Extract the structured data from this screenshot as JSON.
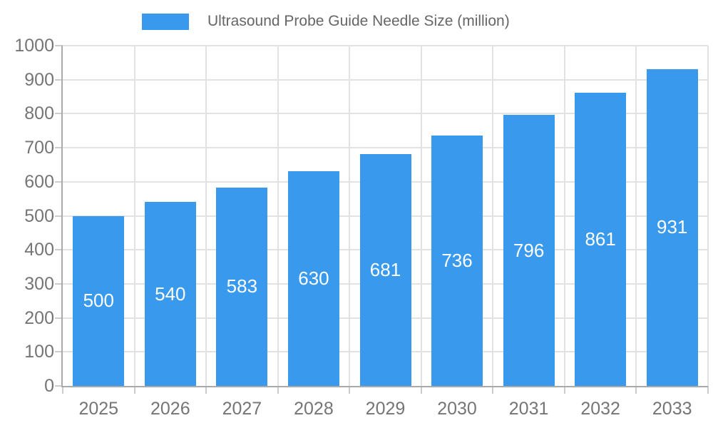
{
  "legend": {
    "label": "Ultrasound Probe Guide Needle Size (million)"
  },
  "colors": {
    "bar": "#3999ec",
    "axis_label": "#757575",
    "legend_text": "#666666",
    "axis_line": "#aaaaaa",
    "grid_line": "#e2e2e2",
    "tick_line": "#cccccc",
    "value_label": "#ffffff"
  },
  "chart_data": {
    "type": "bar",
    "title": "Ultrasound Probe Guide Needle Size (million)",
    "categories": [
      "2025",
      "2026",
      "2027",
      "2028",
      "2029",
      "2030",
      "2031",
      "2032",
      "2033"
    ],
    "series": [
      {
        "name": "Ultrasound Probe Guide Needle Size (million)",
        "values": [
          500,
          540,
          583,
          630,
          681,
          736,
          796,
          861,
          931
        ]
      }
    ],
    "xlabel": "",
    "ylabel": "",
    "ylim": [
      0,
      1000
    ],
    "yticks": [
      0,
      100,
      200,
      300,
      400,
      500,
      600,
      700,
      800,
      900,
      1000
    ],
    "grid": true,
    "legend_position": "top",
    "value_label_position": "inside-center"
  }
}
